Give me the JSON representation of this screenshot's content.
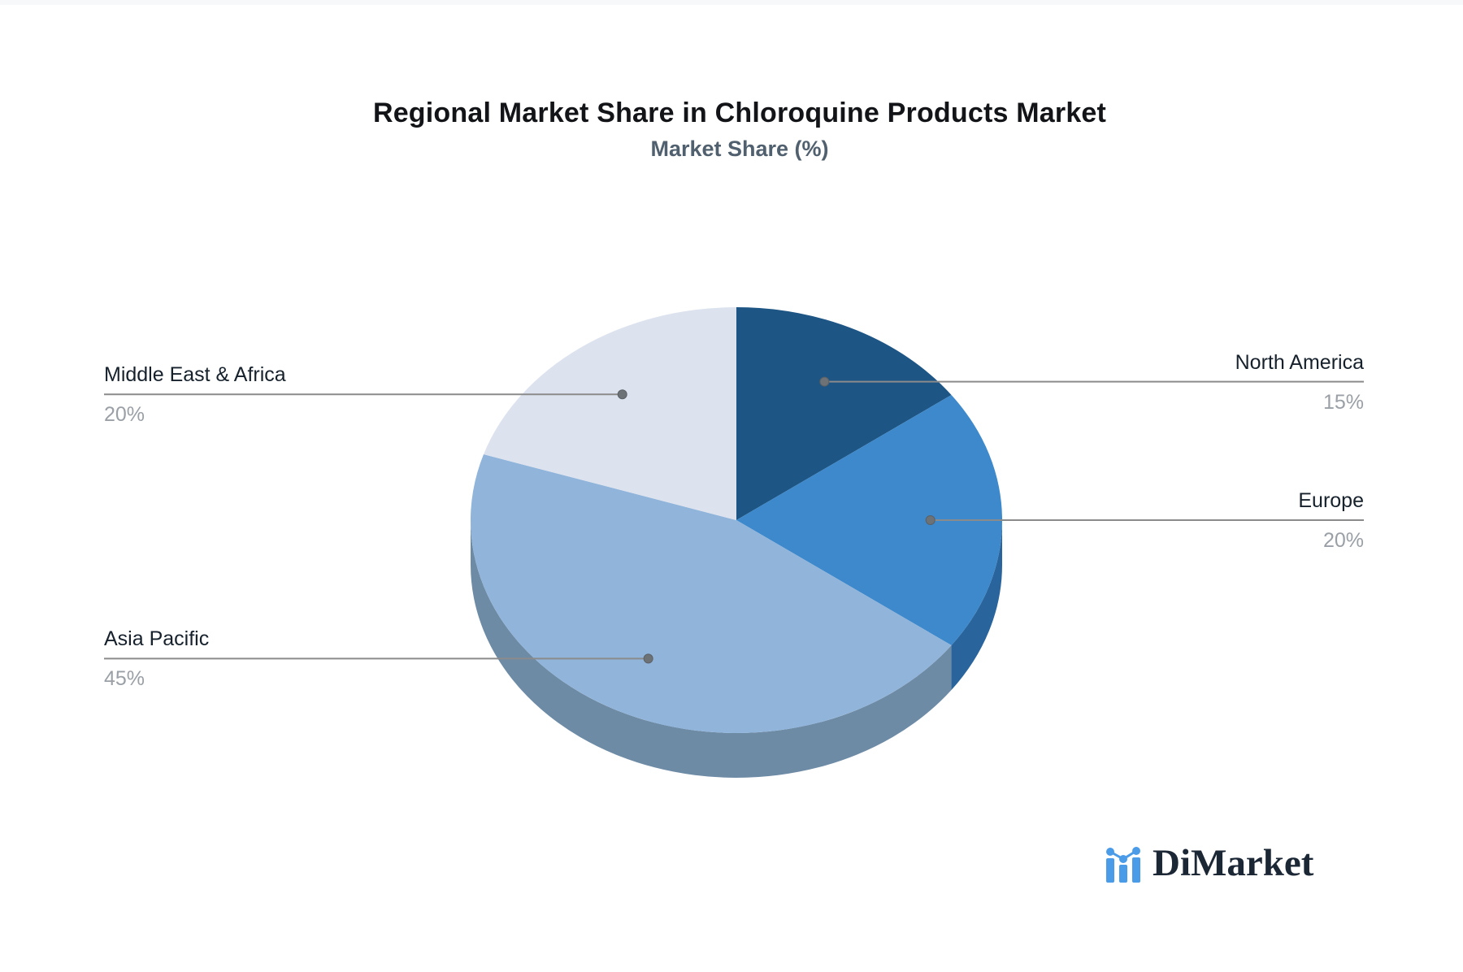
{
  "header": {
    "title": "Regional Market Share in Chloroquine Products Market",
    "subtitle": "Market Share (%)"
  },
  "chart_data": {
    "type": "pie",
    "title": "Regional Market Share in Chloroquine Products Market",
    "subtitle": "Market Share (%)",
    "unit": "%",
    "effect": "3d",
    "start_angle_deg": 0,
    "direction": "clockwise",
    "legend_position": "callout-labels",
    "slices": [
      {
        "label": "North America",
        "value": 15,
        "display": "15%",
        "color": "#1d5585",
        "side_color": "#163f63",
        "label_side": "right"
      },
      {
        "label": "Europe",
        "value": 20,
        "display": "20%",
        "color": "#3d89cb",
        "side_color": "#2a649d",
        "label_side": "right"
      },
      {
        "label": "Asia Pacific",
        "value": 45,
        "display": "45%",
        "color": "#91b4db",
        "side_color": "#6e8ba6",
        "label_side": "left"
      },
      {
        "label": "Middle East & Africa",
        "value": 20,
        "display": "20%",
        "color": "#dde3ee",
        "side_color": "#aab6c6",
        "label_side": "left"
      }
    ],
    "leader_line_color": "#8b8b8b",
    "leader_dot_color": "#6d7276",
    "label_text_color": "#16212c",
    "pct_text_color": "#9aa0a6"
  },
  "branding": {
    "logo_text": "DiMarket",
    "logo_icon": "bar-line-chart-icon",
    "logo_text_color": "#1c2736",
    "logo_accent_color": "#4a9be8"
  }
}
